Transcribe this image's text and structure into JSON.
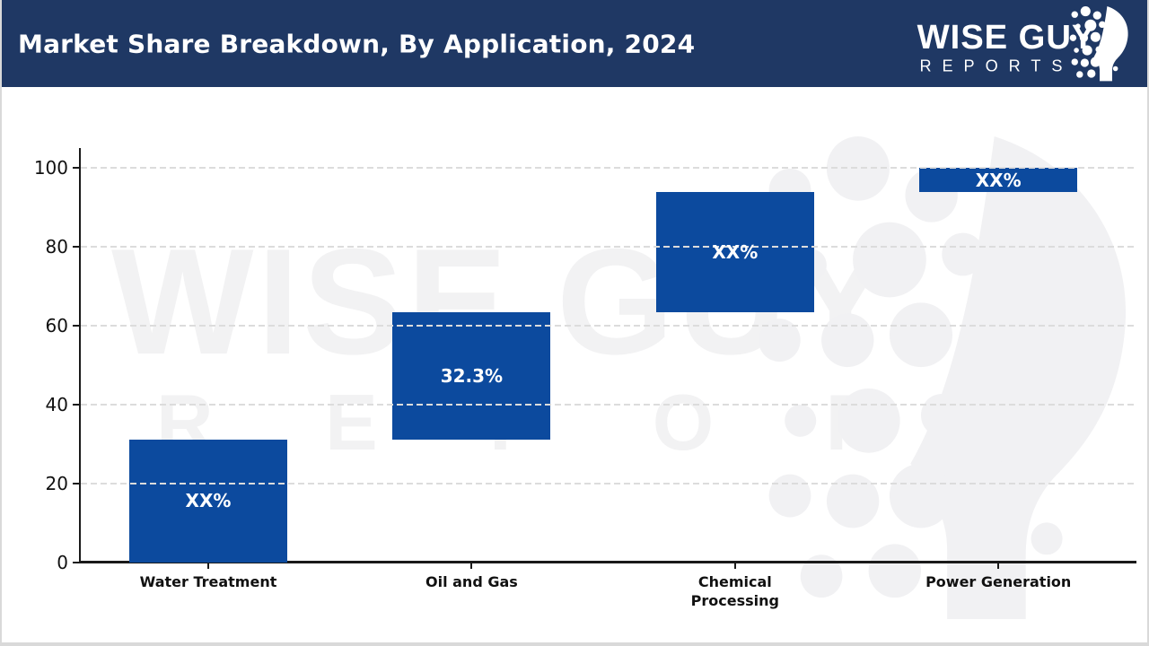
{
  "header": {
    "title": "Market Share Breakdown, By Application, 2024",
    "bg_color": "#1f3864",
    "logo": {
      "line1": "WISE GUY",
      "line2": "REPORTS"
    }
  },
  "watermark": {
    "line1": "WISE GUY",
    "line2": "R E P O R T S"
  },
  "chart_data": {
    "type": "bar",
    "subtype": "waterfall",
    "title": "Market Share Breakdown, By Application, 2024",
    "xlabel": "",
    "ylabel": "",
    "categories": [
      "Water Treatment",
      "Oil and Gas",
      "Chemical\nProcessing",
      "Power Generation"
    ],
    "segments": [
      {
        "category": "Water Treatment",
        "start": 0,
        "end": 31.2,
        "label": "XX%"
      },
      {
        "category": "Oil and Gas",
        "start": 31.2,
        "end": 63.5,
        "label": "32.3%"
      },
      {
        "category": "Chemical\nProcessing",
        "start": 63.5,
        "end": 93.8,
        "label": "XX%"
      },
      {
        "category": "Power Generation",
        "start": 93.8,
        "end": 100,
        "label": "XX%"
      }
    ],
    "yticks": [
      0,
      20,
      40,
      60,
      80,
      100
    ],
    "ylim": [
      0,
      105
    ],
    "bar_color": "#0c4a9e",
    "grid": "horizontal-dashed",
    "grid_color": "#dcdcdc",
    "axis_color": "#1a1a1a",
    "legend": "none"
  }
}
